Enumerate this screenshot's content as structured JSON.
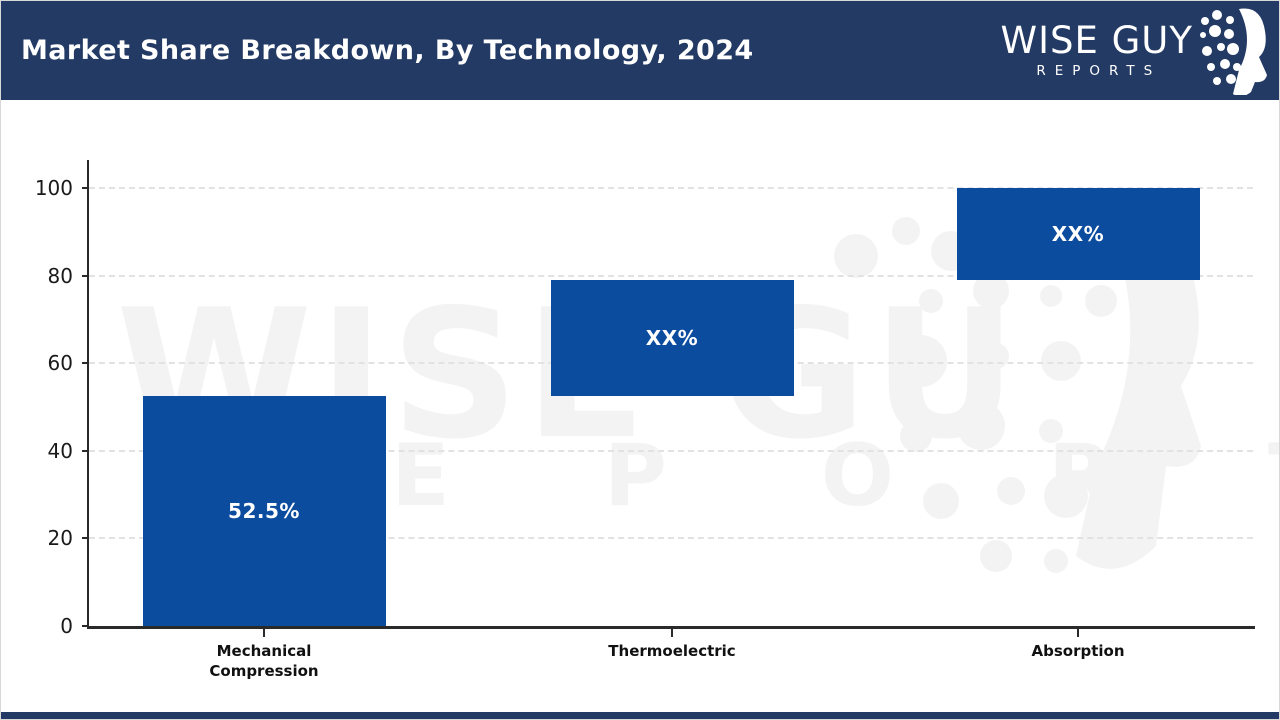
{
  "header": {
    "title": "Market Share Breakdown, By Technology, 2024",
    "logo": {
      "line1": "WISE GUY",
      "line2": "REPORTS"
    }
  },
  "watermark": {
    "line1": "WISE GU",
    "line2": "R E P O R T S"
  },
  "colors": {
    "header_bg": "#233a64",
    "footer_bg": "#233a64",
    "bar_fill": "#0b4c9f",
    "bar_label": "#ffffff",
    "grid": "#e2e2e2",
    "axis": "#2a2a2a",
    "watermark": "#f3f3f3"
  },
  "chart_data": {
    "type": "bar",
    "subtype": "waterfall",
    "title": "Market Share Breakdown, By Technology, 2024",
    "categories": [
      "Mechanical Compression",
      "Thermoelectric",
      "Absorption"
    ],
    "series": [
      {
        "name": "Market Share (%)",
        "segments": [
          {
            "category": "Mechanical Compression",
            "start": 0,
            "end": 52.5,
            "label": "52.5%"
          },
          {
            "category": "Thermoelectric",
            "start": 52.5,
            "end": 79,
            "label": "XX%"
          },
          {
            "category": "Absorption",
            "start": 79,
            "end": 100,
            "label": "XX%"
          }
        ]
      }
    ],
    "xlabel": "",
    "ylabel": "",
    "yticks": [
      0,
      20,
      40,
      60,
      80,
      100
    ],
    "ylim": [
      0,
      105
    ],
    "grid": "horizontal-dashed",
    "legend": "none",
    "watermark_text": "WISE GUY REPORTS"
  }
}
